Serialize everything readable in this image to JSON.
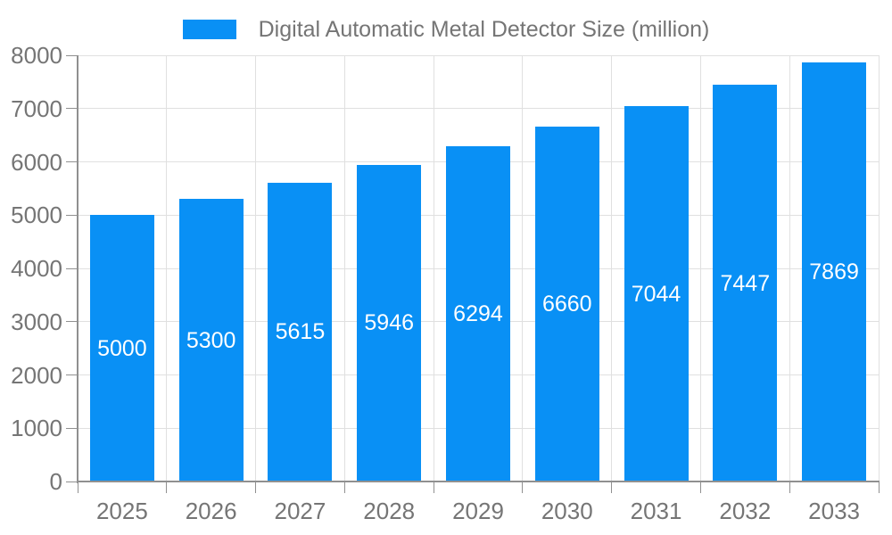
{
  "chart_data": {
    "type": "bar",
    "title": "Digital Automatic Metal Detector Size (million)",
    "categories": [
      "2025",
      "2026",
      "2027",
      "2028",
      "2029",
      "2030",
      "2031",
      "2032",
      "2033"
    ],
    "values": [
      5000,
      5300,
      5615,
      5946,
      6294,
      6660,
      7044,
      7447,
      7869
    ],
    "series": [
      {
        "name": "Digital Automatic Metal Detector Size (million)",
        "values": [
          5000,
          5300,
          5615,
          5946,
          6294,
          6660,
          7044,
          7447,
          7869
        ]
      }
    ],
    "xlabel": "",
    "ylabel": "",
    "ylim": [
      0,
      8000
    ],
    "yticks": [
      0,
      1000,
      2000,
      3000,
      4000,
      5000,
      6000,
      7000,
      8000
    ],
    "grid": true,
    "value_labels": "inside-center",
    "legend_position": "top-center",
    "colors": {
      "bar": "#0990f5",
      "grid_line": "#e0e0e0",
      "axis_line": "#909090",
      "tick_label": "#757575",
      "title_text": "#757575",
      "value_label": "#ffffff",
      "background": "#ffffff"
    }
  }
}
